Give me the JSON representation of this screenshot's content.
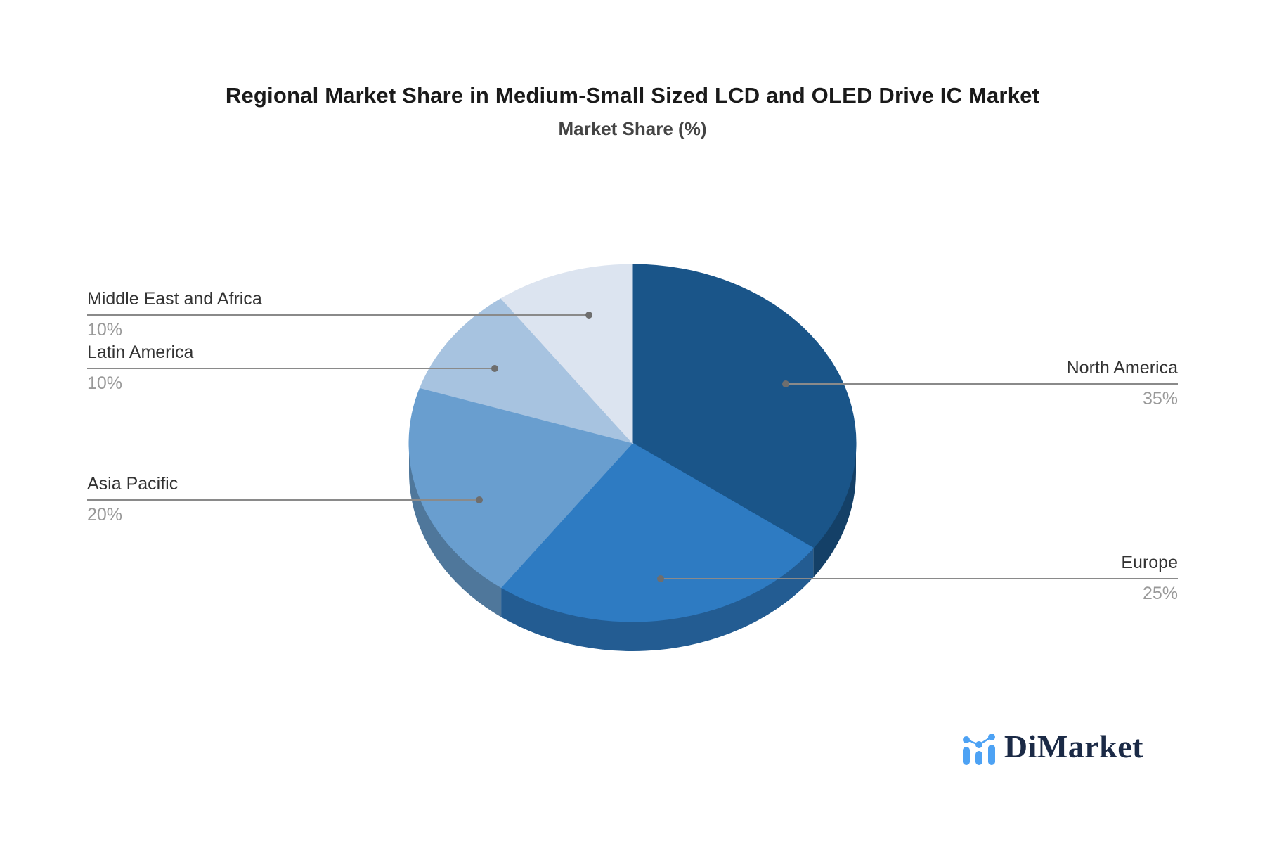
{
  "chart_data": {
    "type": "pie",
    "style": "3d-pie",
    "title": "Regional Market Share in Medium-Small Sized LCD and OLED Drive IC Market",
    "subtitle": "Market Share (%)",
    "unit": "%",
    "direction": "clockwise",
    "start_angle_deg": 0,
    "labels_layout": "outside-with-leader-lines",
    "background_color": "#ffffff",
    "leader_line_color": "#8a8a8a",
    "leader_dot_color": "#6e6e6e",
    "label_color": "#333333",
    "value_color": "#999999",
    "slices": [
      {
        "label": "North America",
        "value": 35,
        "value_label": "35%",
        "color": "#1a5589"
      },
      {
        "label": "Europe",
        "value": 25,
        "value_label": "25%",
        "color": "#2e7bc2"
      },
      {
        "label": "Asia Pacific",
        "value": 20,
        "value_label": "20%",
        "color": "#699ecf"
      },
      {
        "label": "Latin America",
        "value": 10,
        "value_label": "10%",
        "color": "#a7c3e0"
      },
      {
        "label": "Middle East and Africa",
        "value": 10,
        "value_label": "10%",
        "color": "#dce4f0"
      }
    ]
  },
  "logo": {
    "text": "DiMarket",
    "icon": "bar-chart-logo-icon",
    "icon_color": "#4da2f4",
    "text_color": "#1b2a46"
  }
}
